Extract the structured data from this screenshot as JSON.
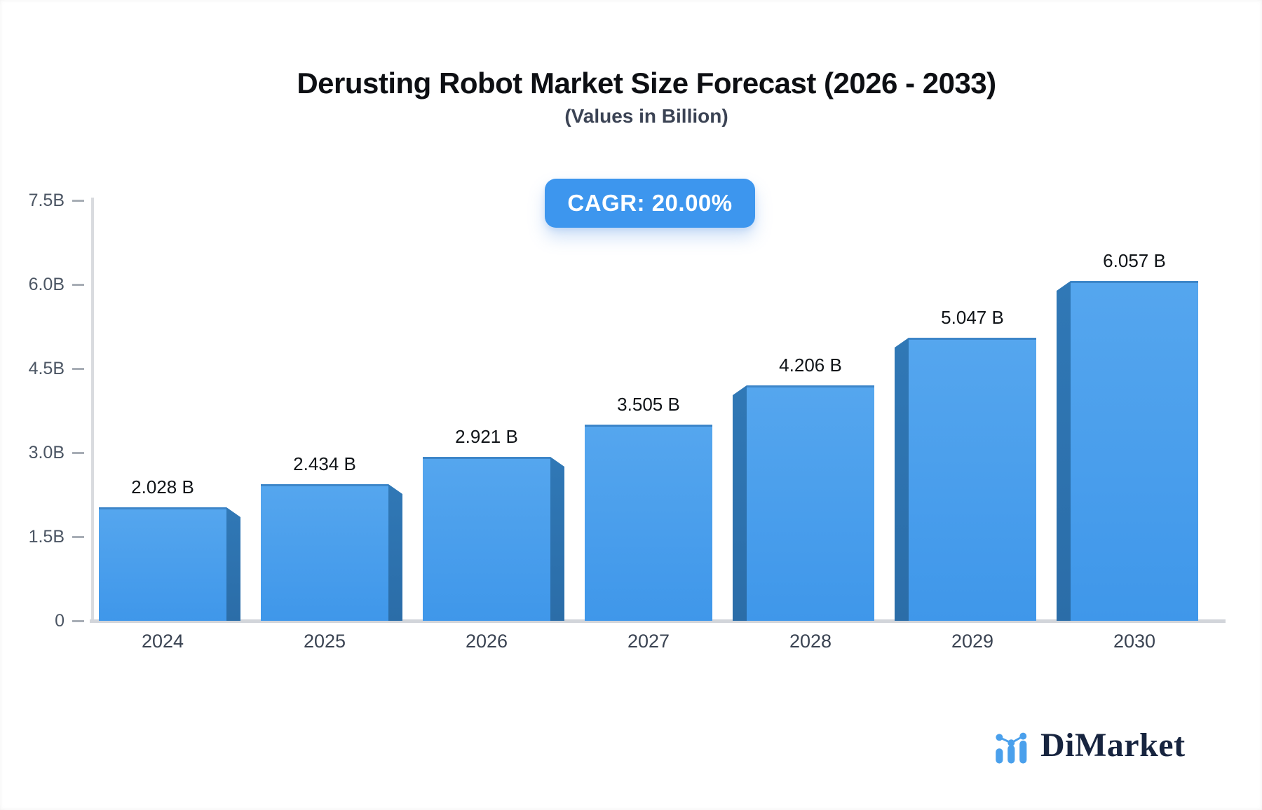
{
  "header": {
    "title": "Derusting Robot Market Size Forecast (2026 - 2033)",
    "subtitle": "(Values in Billion)",
    "cagr_label": "CAGR: 20.00%",
    "badge_color": "#3d96ee"
  },
  "chart_data": {
    "type": "bar",
    "title": "Derusting Robot Market Size Forecast (2026 - 2033)",
    "subtitle": "(Values in Billion)",
    "xlabel": "",
    "ylabel": "",
    "categories": [
      "2024",
      "2025",
      "2026",
      "2027",
      "2028",
      "2029",
      "2030"
    ],
    "values": [
      2.028,
      2.434,
      2.921,
      3.505,
      4.206,
      5.047,
      6.057
    ],
    "value_labels": [
      "2.028 B",
      "2.434 B",
      "2.921 B",
      "3.505 B",
      "4.206 B",
      "5.047 B",
      "6.057 B"
    ],
    "unit": "Billion",
    "cagr": "20.00%",
    "ylim": [
      0,
      7.5
    ],
    "y_ticks": [
      {
        "label": "7.5B",
        "value": 7.5
      },
      {
        "label": "6.0B",
        "value": 6.0
      },
      {
        "label": "4.5B",
        "value": 4.5
      },
      {
        "label": "3.0B",
        "value": 3.0
      },
      {
        "label": "1.5B",
        "value": 1.5
      },
      {
        "label": "0",
        "value": 0
      }
    ],
    "grid": false,
    "legend": false,
    "bar_face_top_color": "#55a6ee",
    "bar_face_bottom_color": "#3f97ea",
    "bar_edge_color": "#3d86c9",
    "bar_side_top_color": "#3078b6",
    "bar_side_bottom_color": "#2b6da8"
  },
  "logo": {
    "text": "DiMarket",
    "icon": "bar-chart-logo-icon",
    "icon_color": "#4aa0ec",
    "text_color": "#17243f"
  }
}
